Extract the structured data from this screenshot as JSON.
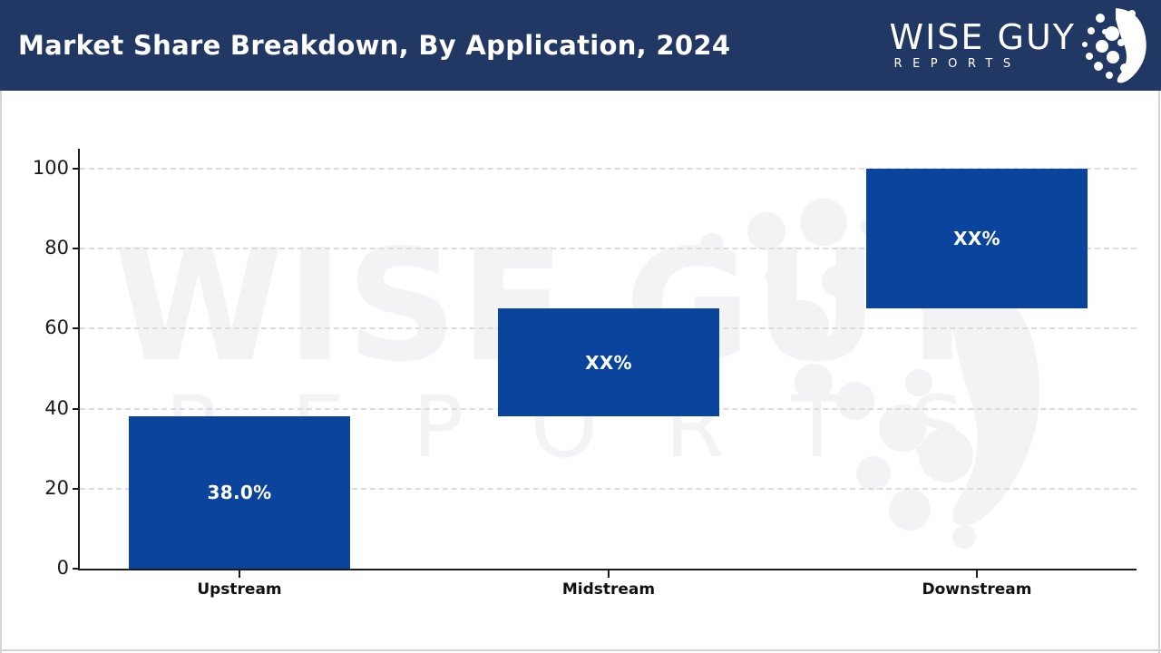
{
  "header": {
    "title": "Market Share Breakdown, By Application, 2024"
  },
  "logo": {
    "line1": "WISE GUY",
    "line2": "REPORTS"
  },
  "watermark": {
    "line1": "WISE GUY",
    "line2": "R E P O R T S"
  },
  "chart_data": {
    "type": "bar",
    "subtype": "waterfall",
    "title": "Market Share Breakdown, By Application, 2024",
    "categories": [
      "Upstream",
      "Midstream",
      "Downstream"
    ],
    "segments": [
      {
        "category": "Upstream",
        "start": 0,
        "end": 38,
        "label": "38.0%"
      },
      {
        "category": "Midstream",
        "start": 38,
        "end": 65,
        "label": "XX%"
      },
      {
        "category": "Downstream",
        "start": 65,
        "end": 100,
        "label": "XX%"
      }
    ],
    "yticks": [
      0,
      20,
      40,
      60,
      80,
      100
    ],
    "ylim": [
      0,
      100
    ],
    "xlabel": "",
    "ylabel": "",
    "grid": "horizontal-dashed",
    "legend": "none",
    "bar_color": "#0a449c",
    "bar_label_color": "#ffffff"
  },
  "colors": {
    "header_bg": "#213864",
    "bar_blue": "#0a449c",
    "gridline": "#dcdcdc",
    "axis": "#1a1a1a",
    "watermark": "#f3f3f5"
  }
}
